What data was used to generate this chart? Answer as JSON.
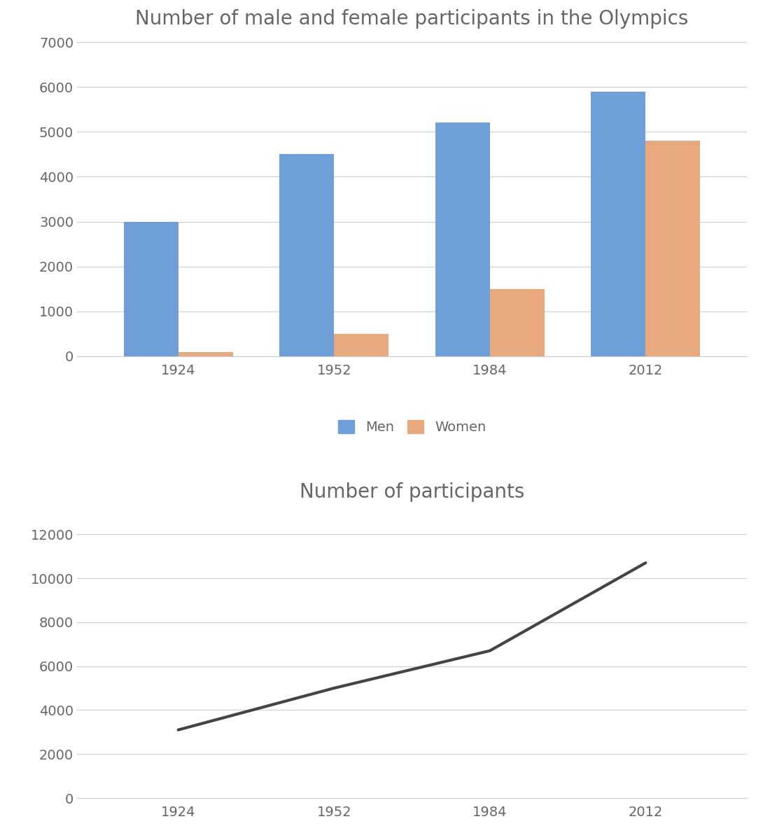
{
  "bar_title": "Number of male and female participants in the Olympics",
  "line_title": "Number of participants",
  "years": [
    1924,
    1952,
    1984,
    2012
  ],
  "men": [
    3000,
    4500,
    5200,
    5900
  ],
  "women": [
    100,
    500,
    1500,
    4800
  ],
  "total": [
    3100,
    5000,
    6700,
    10700
  ],
  "men_color": "#6f9fd8",
  "women_color": "#e8a97e",
  "line_color": "#444444",
  "bar_ylim": [
    0,
    7000
  ],
  "bar_yticks": [
    0,
    1000,
    2000,
    3000,
    4000,
    5000,
    6000,
    7000
  ],
  "line_ylim": [
    0,
    13000
  ],
  "line_yticks": [
    0,
    2000,
    4000,
    6000,
    8000,
    10000,
    12000
  ],
  "legend_labels": [
    "Men",
    "Women"
  ],
  "bar_width": 0.35,
  "title_fontsize": 20,
  "tick_fontsize": 14,
  "legend_fontsize": 14,
  "background_color": "#ffffff",
  "grid_color": "#cccccc",
  "text_color": "#666666"
}
